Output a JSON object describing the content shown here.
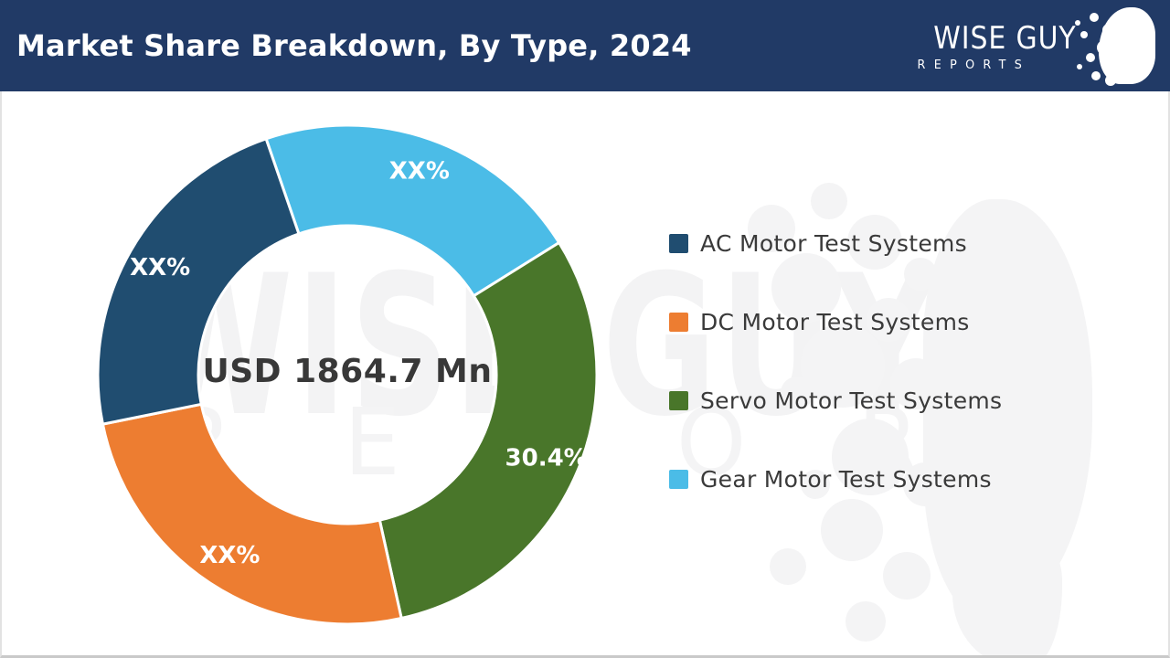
{
  "header": {
    "title": "Market Share Breakdown, By Type, 2024",
    "logo": {
      "line1": "WISE GUY",
      "line2": "REPORTS"
    }
  },
  "watermark": {
    "line1": "WISE GUY",
    "line2": "R E P O R T S"
  },
  "chart_data": {
    "type": "pie",
    "variant": "donut",
    "title": "Market Share Breakdown, By Type, 2024",
    "center_label": "USD 1864.7 Mn",
    "units": "percent of market share",
    "start_angle_deg_clockwise_from_top": -19,
    "inner_radius_ratio": 0.6,
    "legend_position": "right",
    "segments": [
      {
        "name": "Gear Motor Test Systems",
        "value_pct": 21.4,
        "display_label": "XX%",
        "color": "#4BBCE7"
      },
      {
        "name": "Servo Motor Test Systems",
        "value_pct": 30.4,
        "display_label": "30.4%",
        "color": "#49762A"
      },
      {
        "name": "DC Motor Test Systems",
        "value_pct": 25.3,
        "display_label": "XX%",
        "color": "#ED7D31"
      },
      {
        "name": "AC Motor Test Systems",
        "value_pct": 22.9,
        "display_label": "XX%",
        "color": "#204D70"
      }
    ],
    "legend": [
      {
        "label": "AC Motor Test Systems",
        "color": "#204D70"
      },
      {
        "label": "DC Motor Test Systems",
        "color": "#ED7D31"
      },
      {
        "label": "Servo Motor Test Systems",
        "color": "#49762A"
      },
      {
        "label": "Gear Motor Test Systems",
        "color": "#4BBCE7"
      }
    ]
  },
  "colors": {
    "header_bg": "#213a66",
    "text_dark": "#3a3a3a",
    "watermark": "#f3f3f4",
    "card_border": "#c9c9c9"
  }
}
